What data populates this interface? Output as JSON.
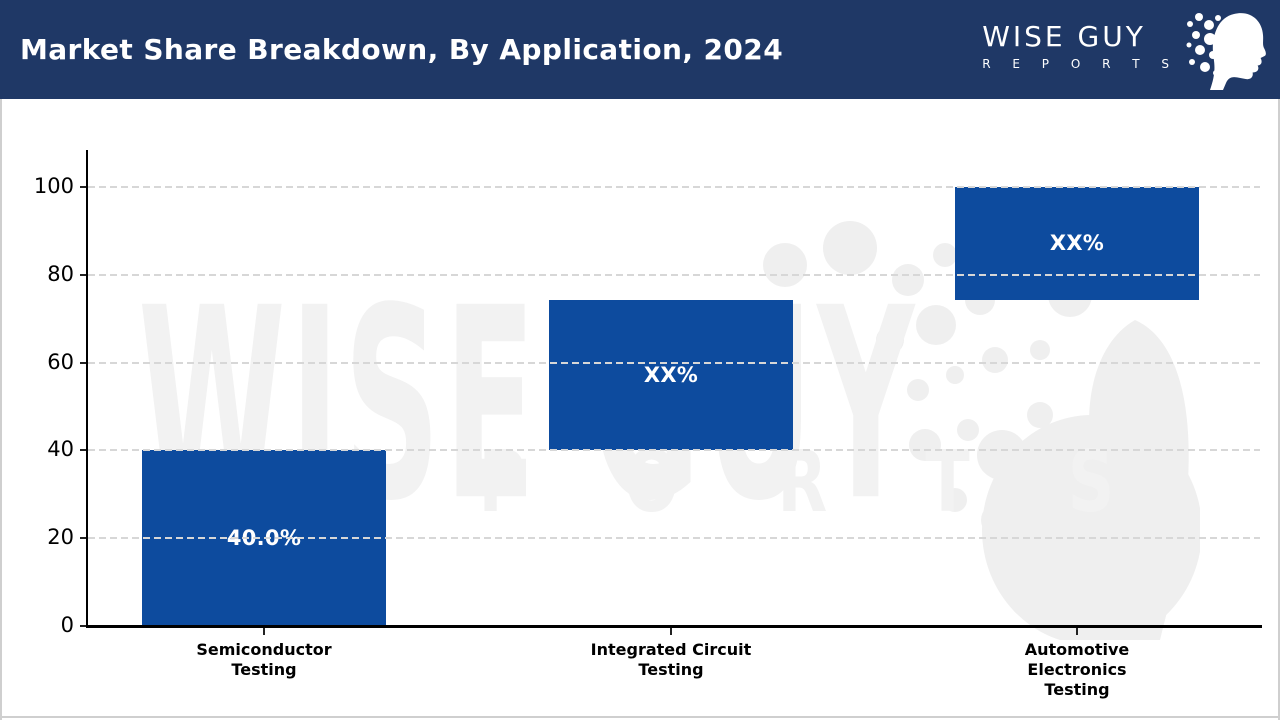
{
  "header": {
    "title": "Market Share Breakdown, By Application, 2024",
    "bg_color": "#1f3866",
    "logo": {
      "line1": "WISE GUY",
      "line2": "R E P O R T S"
    }
  },
  "watermark": {
    "line1": "WISE GUY",
    "line2": "R E P O R T S"
  },
  "chart_data": {
    "type": "bar",
    "variant": "waterfall",
    "title": "Market Share Breakdown, By Application, 2024",
    "unit": "%",
    "categories": [
      "Semiconductor Testing",
      "Integrated Circuit Testing",
      "Automotive Electronics Testing"
    ],
    "x_label_lines": [
      [
        "Semiconductor",
        "Testing"
      ],
      [
        "Integrated Circuit",
        "Testing"
      ],
      [
        "Automotive",
        "Electronics",
        "Testing"
      ]
    ],
    "bars": [
      {
        "label": "40.0%",
        "start": 0,
        "end": 40
      },
      {
        "label": "XX%",
        "start": 40,
        "end": 74.3
      },
      {
        "label": "XX%",
        "start": 74.3,
        "end": 100
      }
    ],
    "yticks": [
      0,
      20,
      40,
      60,
      80,
      100
    ],
    "ylim": [
      0,
      107
    ],
    "xlabel": "",
    "ylabel": "",
    "grid": true,
    "grid_style": "dashed-horizontal-above-bars",
    "legend": "none",
    "bar_color": "#0d4b9e",
    "value_label_color": "#ffffff",
    "grid_color": "#d7d7d7",
    "axis_color": "#000000"
  }
}
